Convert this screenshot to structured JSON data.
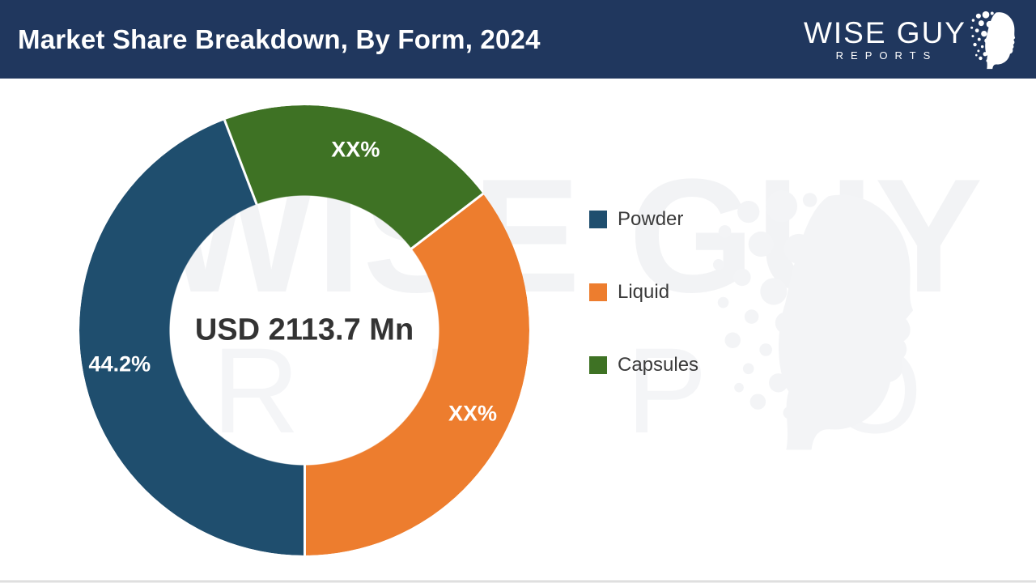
{
  "header": {
    "title": "Market Share Breakdown, By Form, 2024",
    "logo": {
      "line1": "WISE GUY",
      "line2": "REPORTS"
    }
  },
  "chart_data": {
    "type": "pie",
    "subtype": "donut",
    "title": "Market Share Breakdown, By Form, 2024",
    "center_label": "USD 2113.7 Mn",
    "start_angle_deg": 180,
    "legend_position": "right",
    "slices": [
      {
        "name": "Powder",
        "label": "44.2%",
        "percent": 44.2,
        "color": "#1F4E6E"
      },
      {
        "name": "Capsules",
        "label": "XX%",
        "percent": 20.4,
        "color": "#3E7224"
      },
      {
        "name": "Liquid",
        "label": "XX%",
        "percent": 35.4,
        "color": "#ED7D2E"
      }
    ]
  },
  "legend": {
    "items": [
      {
        "label": "Powder",
        "color": "#1F4E6E"
      },
      {
        "label": "Liquid",
        "color": "#ED7D2E"
      },
      {
        "label": "Capsules",
        "color": "#3E7224"
      }
    ]
  },
  "watermark": {
    "line1": "WISE GUY",
    "line2": "R E P O R T S"
  },
  "colors": {
    "header_bg": "#20375E",
    "title_text": "#FFFFFF",
    "center_text": "#333333",
    "legend_text": "#3A3A3A",
    "watermark": "#F3F4F6"
  }
}
